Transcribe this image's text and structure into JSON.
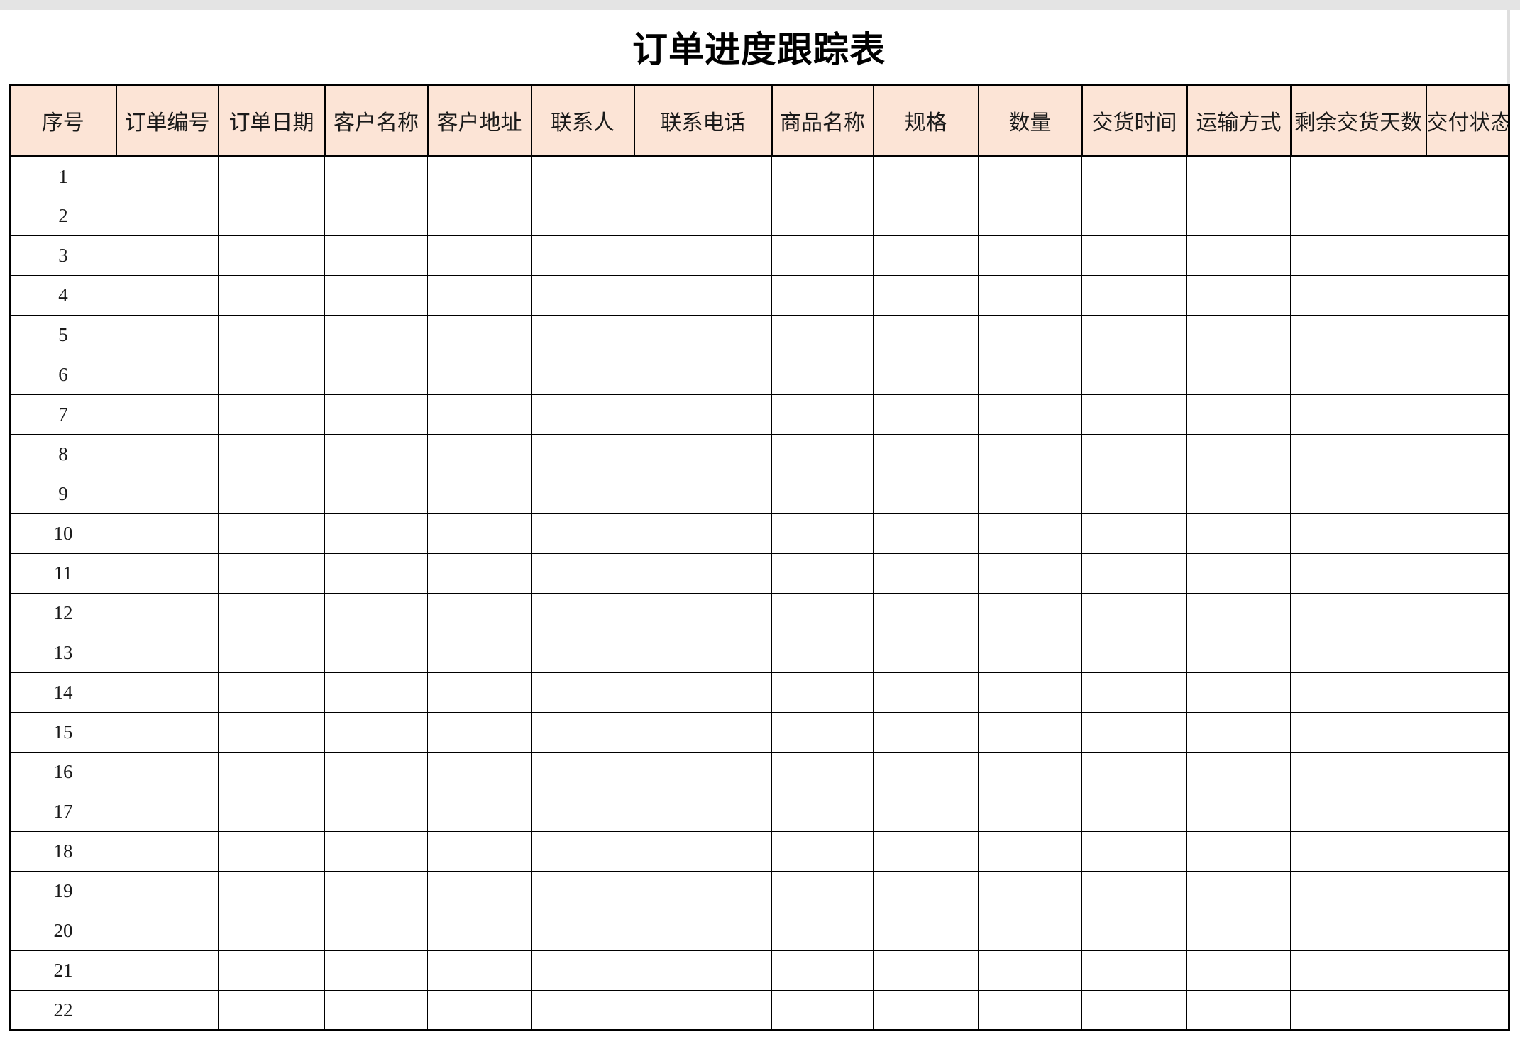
{
  "title": "订单进度跟踪表",
  "colors": {
    "header_bg": "#fce4d6",
    "grid_line": "#000000",
    "page_edge": "#e4e4e4",
    "text": "#1a1a1a"
  },
  "table": {
    "columns": [
      "序号",
      "订单编号",
      "订单日期",
      "客户名称",
      "客户地址",
      "联系人",
      "联系电话",
      "商品名称",
      "规格",
      "数量",
      "交货时间",
      "运输方式",
      "剩余交货天数",
      "交付状态"
    ],
    "rows": [
      [
        "1",
        "",
        "",
        "",
        "",
        "",
        "",
        "",
        "",
        "",
        "",
        "",
        "",
        ""
      ],
      [
        "2",
        "",
        "",
        "",
        "",
        "",
        "",
        "",
        "",
        "",
        "",
        "",
        "",
        ""
      ],
      [
        "3",
        "",
        "",
        "",
        "",
        "",
        "",
        "",
        "",
        "",
        "",
        "",
        "",
        ""
      ],
      [
        "4",
        "",
        "",
        "",
        "",
        "",
        "",
        "",
        "",
        "",
        "",
        "",
        "",
        ""
      ],
      [
        "5",
        "",
        "",
        "",
        "",
        "",
        "",
        "",
        "",
        "",
        "",
        "",
        "",
        ""
      ],
      [
        "6",
        "",
        "",
        "",
        "",
        "",
        "",
        "",
        "",
        "",
        "",
        "",
        "",
        ""
      ],
      [
        "7",
        "",
        "",
        "",
        "",
        "",
        "",
        "",
        "",
        "",
        "",
        "",
        "",
        ""
      ],
      [
        "8",
        "",
        "",
        "",
        "",
        "",
        "",
        "",
        "",
        "",
        "",
        "",
        "",
        ""
      ],
      [
        "9",
        "",
        "",
        "",
        "",
        "",
        "",
        "",
        "",
        "",
        "",
        "",
        "",
        ""
      ],
      [
        "10",
        "",
        "",
        "",
        "",
        "",
        "",
        "",
        "",
        "",
        "",
        "",
        "",
        ""
      ],
      [
        "11",
        "",
        "",
        "",
        "",
        "",
        "",
        "",
        "",
        "",
        "",
        "",
        "",
        ""
      ],
      [
        "12",
        "",
        "",
        "",
        "",
        "",
        "",
        "",
        "",
        "",
        "",
        "",
        "",
        ""
      ],
      [
        "13",
        "",
        "",
        "",
        "",
        "",
        "",
        "",
        "",
        "",
        "",
        "",
        "",
        ""
      ],
      [
        "14",
        "",
        "",
        "",
        "",
        "",
        "",
        "",
        "",
        "",
        "",
        "",
        "",
        ""
      ],
      [
        "15",
        "",
        "",
        "",
        "",
        "",
        "",
        "",
        "",
        "",
        "",
        "",
        "",
        ""
      ],
      [
        "16",
        "",
        "",
        "",
        "",
        "",
        "",
        "",
        "",
        "",
        "",
        "",
        "",
        ""
      ],
      [
        "17",
        "",
        "",
        "",
        "",
        "",
        "",
        "",
        "",
        "",
        "",
        "",
        "",
        ""
      ],
      [
        "18",
        "",
        "",
        "",
        "",
        "",
        "",
        "",
        "",
        "",
        "",
        "",
        "",
        ""
      ],
      [
        "19",
        "",
        "",
        "",
        "",
        "",
        "",
        "",
        "",
        "",
        "",
        "",
        "",
        ""
      ],
      [
        "20",
        "",
        "",
        "",
        "",
        "",
        "",
        "",
        "",
        "",
        "",
        "",
        "",
        ""
      ],
      [
        "21",
        "",
        "",
        "",
        "",
        "",
        "",
        "",
        "",
        "",
        "",
        "",
        "",
        ""
      ],
      [
        "22",
        "",
        "",
        "",
        "",
        "",
        "",
        "",
        "",
        "",
        "",
        "",
        "",
        ""
      ]
    ]
  }
}
